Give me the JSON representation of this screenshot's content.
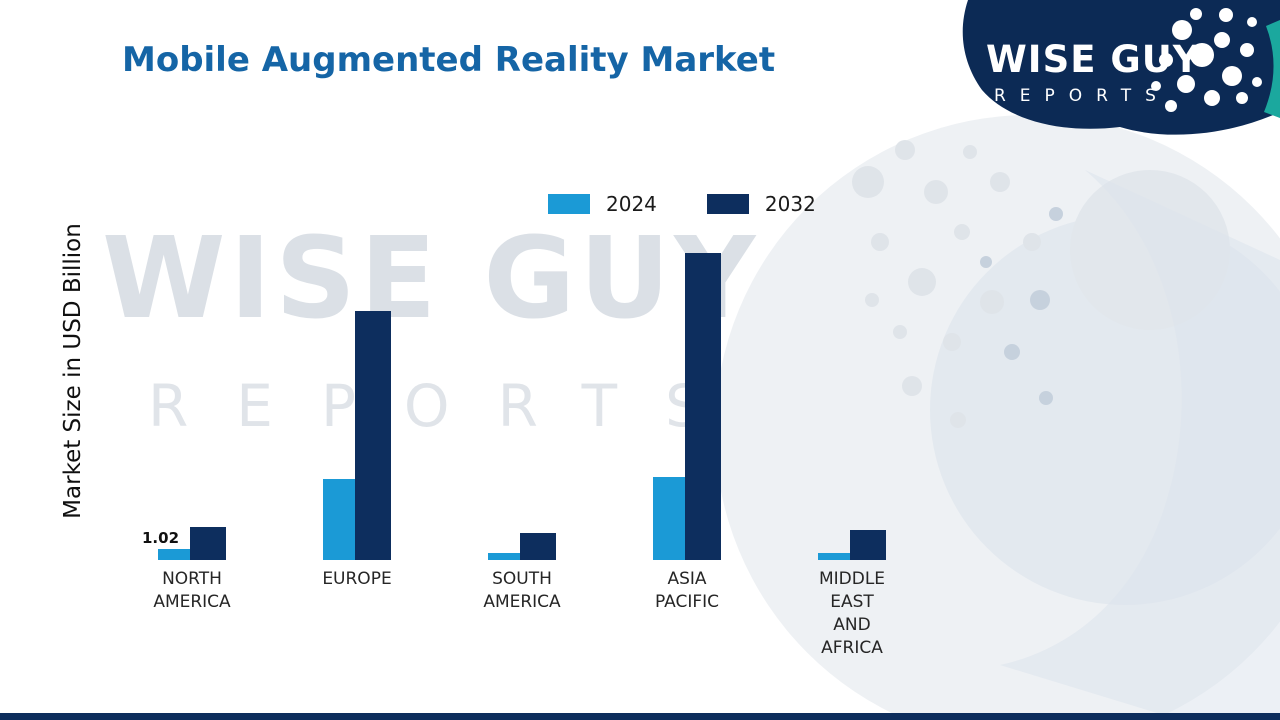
{
  "title": "Mobile Augmented Reality Market",
  "logo": {
    "line1": "WISE GUY",
    "line2": "REPORTS"
  },
  "watermark": {
    "line1": "WISE GUY",
    "line2": "REPORTS"
  },
  "colors": {
    "series_2024": "#1b9ad6",
    "series_2032": "#0d2e5e",
    "title_blue": "#1565a6",
    "logo_navy": "#0c2a55",
    "teal_accent": "#1ba89e"
  },
  "chart_data": {
    "type": "bar",
    "title": "Mobile Augmented Reality Market",
    "ylabel": "Market Size in USD Billion",
    "xlabel": "",
    "categories": [
      "NORTH AMERICA",
      "EUROPE",
      "SOUTH AMERICA",
      "ASIA PACIFIC",
      "MIDDLE EAST AND AFRICA"
    ],
    "series": [
      {
        "name": "2024",
        "color": "#1b9ad6",
        "values": [
          1.02,
          7.6,
          0.7,
          7.8,
          0.7
        ]
      },
      {
        "name": "2032",
        "color": "#0d2e5e",
        "values": [
          3.1,
          23.3,
          2.5,
          28.7,
          2.8
        ]
      }
    ],
    "data_labels": [
      "1.02"
    ],
    "ylim": [
      0,
      30
    ],
    "grid": false,
    "legend_position": "top"
  }
}
